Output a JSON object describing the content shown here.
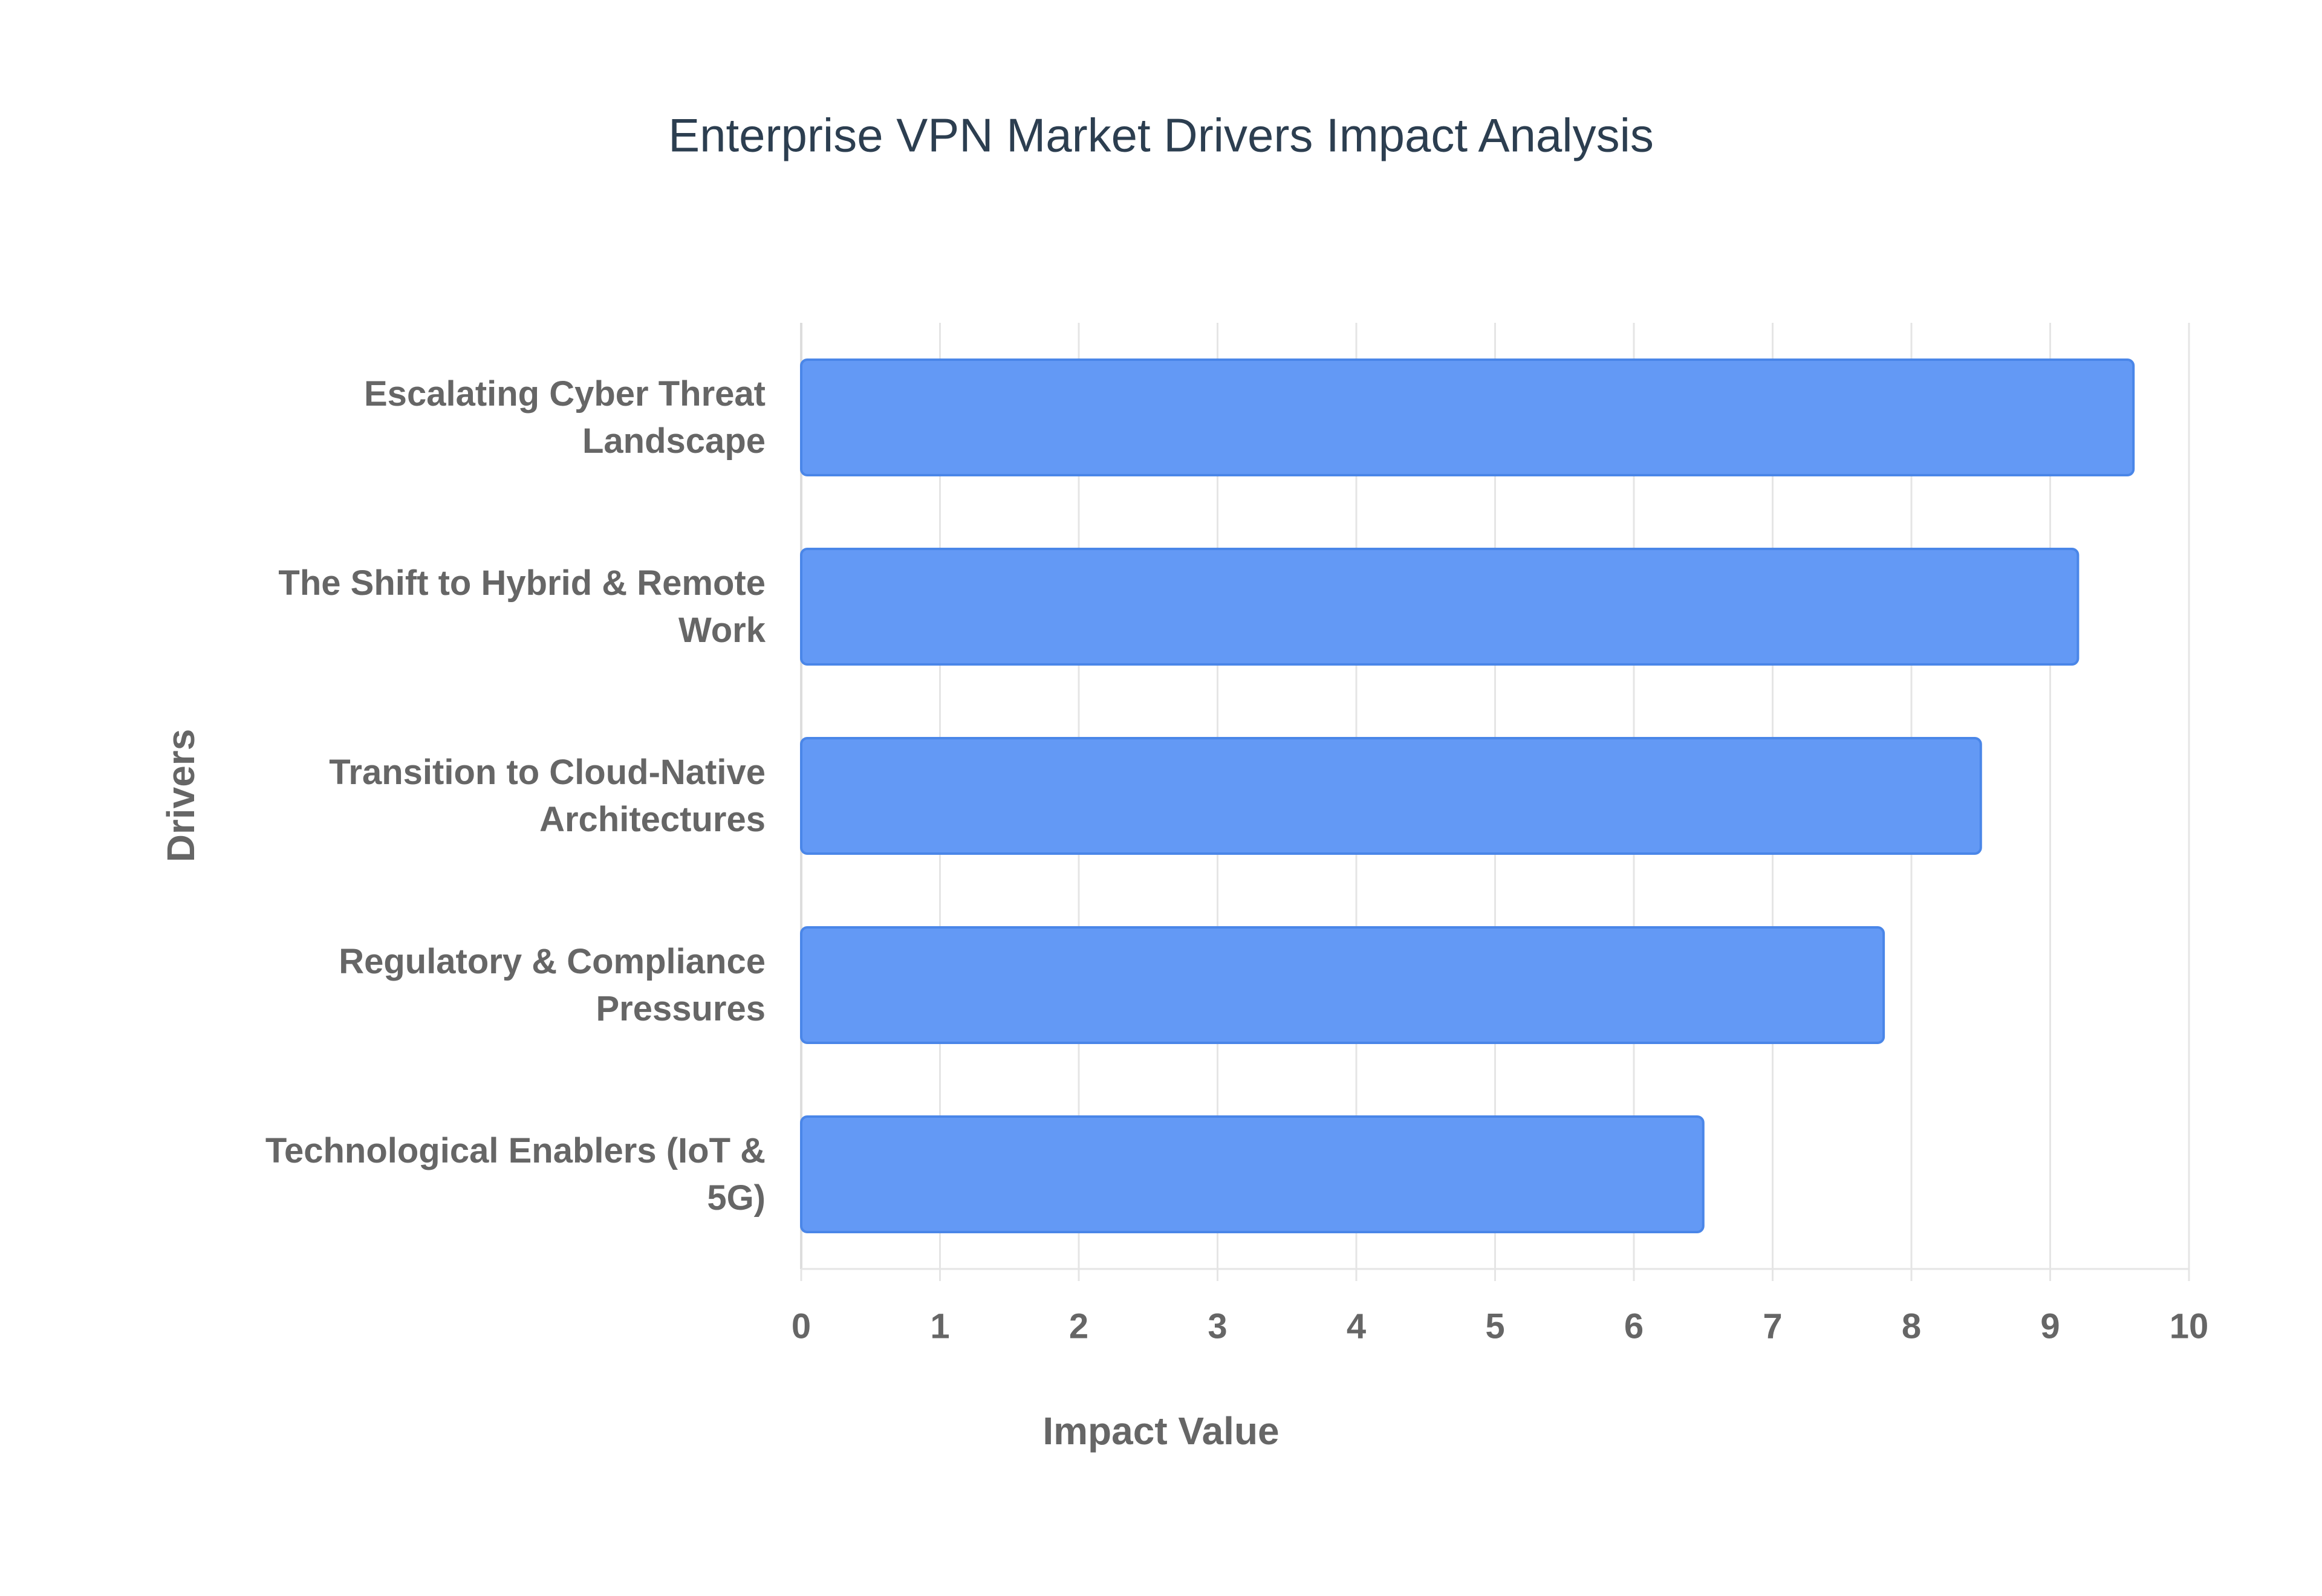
{
  "chart_data": {
    "type": "hbar",
    "title": "Enterprise VPN Market Drivers Impact Analysis",
    "x_label": "Impact Value",
    "y_label": "Drivers",
    "categories": [
      "Escalating Cyber Threat Landscape",
      "The Shift to Hybrid & Remote Work",
      "Transition to Cloud-Native Architectures",
      "Regulatory & Compliance Pressures",
      "Technological Enablers (IoT & 5G)"
    ],
    "values": [
      9.6,
      9.2,
      8.5,
      7.8,
      6.5
    ],
    "color": "#6399f5",
    "border_color": "#4a86e8",
    "xlim": [
      0,
      10
    ],
    "xticks": [
      0,
      1,
      2,
      3,
      4,
      5,
      6,
      7,
      8,
      9,
      10
    ],
    "grid": true
  }
}
